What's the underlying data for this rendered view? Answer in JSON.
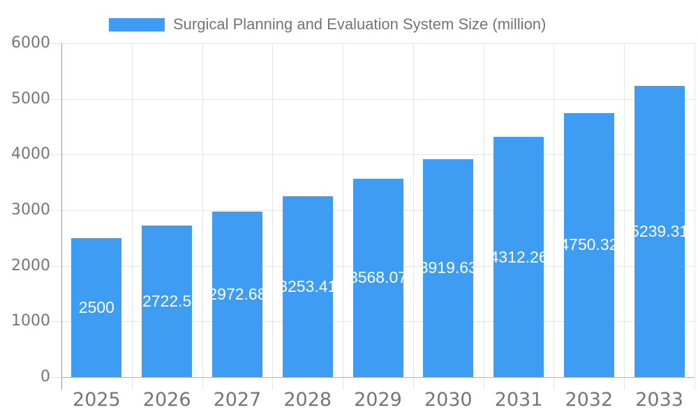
{
  "legend": {
    "label": "Surgical Planning and Evaluation System Size (million)"
  },
  "colors": {
    "background": "#ffffff",
    "bar": "#3e9df3",
    "grid": "#e4e4e4",
    "axis_y_line": "#969696",
    "baseline": "#b3b3b3",
    "tick_text": "#757575",
    "legend_text": "#747474",
    "value_label": "#ffffff"
  },
  "chart_data": {
    "type": "bar",
    "title": "Surgical Planning and Evaluation System Size (million)",
    "categories": [
      "2025",
      "2026",
      "2027",
      "2028",
      "2029",
      "2030",
      "2031",
      "2032",
      "2033"
    ],
    "series": [
      {
        "name": "Surgical Planning and Evaluation System Size (million)",
        "values": [
          2500,
          2722.5,
          2972.68,
          3253.41,
          3568.07,
          3919.63,
          4312.26,
          4750.32,
          5239.31
        ],
        "value_labels": [
          "2500",
          "2722.5",
          "2972.68",
          "3253.41",
          "3568.07",
          "3919.63",
          "4312.26",
          "4750.32",
          "5239.31"
        ]
      }
    ],
    "xlabel": "",
    "ylabel": "",
    "ylim": [
      0,
      6000
    ],
    "yticks": [
      0,
      1000,
      2000,
      3000,
      4000,
      5000,
      6000
    ],
    "grid": true,
    "legend_position": "top",
    "value_labels_inside_bars": true
  }
}
